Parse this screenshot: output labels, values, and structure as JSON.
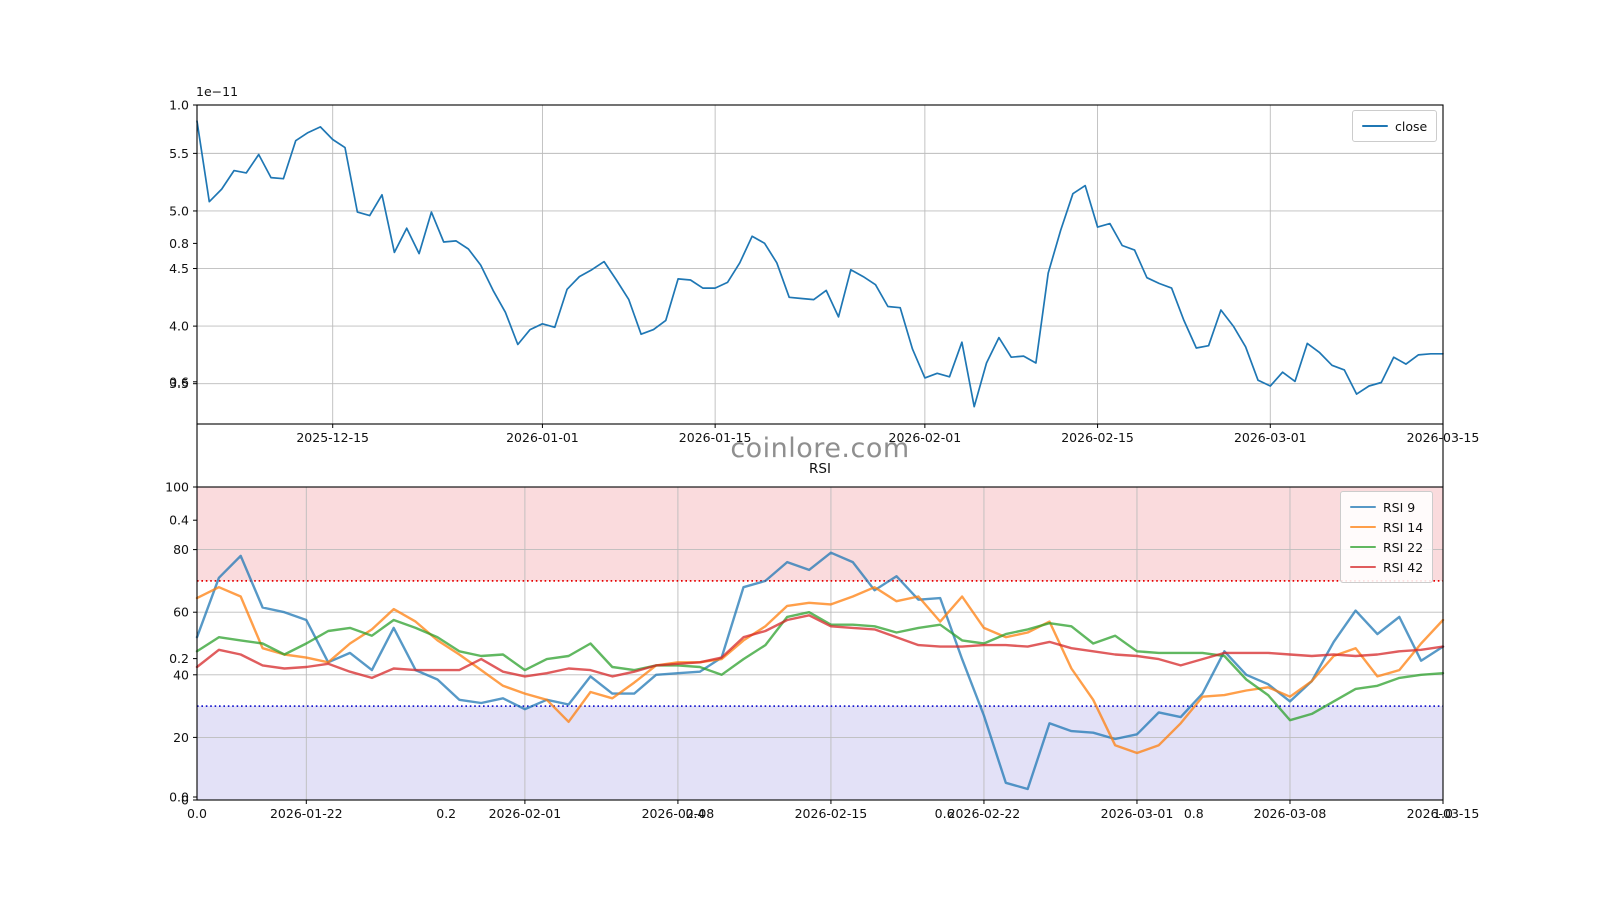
{
  "watermark": "coinlore.com",
  "colors": {
    "background": "#ffffff",
    "spine": "#000000",
    "grid": "#bcbcbc",
    "watermark": "#8f8f8f",
    "close_line": "#1f77b4",
    "rsi9_line": "rgba(31,119,180,0.75)",
    "rsi14_line": "rgba(255,127,14,0.75)",
    "rsi22_line": "rgba(44,160,44,0.75)",
    "rsi42_line": "rgba(214,39,40,0.75)",
    "overbought_band": "#fadbdd",
    "oversold_band": "#e3e1f7",
    "overbought_line": "#e60000",
    "oversold_line": "#1a1acd"
  },
  "overlay_axis": {
    "x_ticks": [
      "0.0",
      "0.2",
      "0.4",
      "0.6",
      "0.8",
      "1.0"
    ],
    "y_ticks": [
      "0.0",
      "0.2",
      "0.4",
      "0.6",
      "0.8",
      "1.0"
    ]
  },
  "chart_data": [
    {
      "type": "line",
      "name": "price",
      "y_offset_label": "1e−11",
      "unit_multiplier": "1e-11",
      "x_range": [
        "2025-12-04",
        "2026-03-15"
      ],
      "x_ticks": [
        "2025-12-15",
        "2026-01-01",
        "2026-01-15",
        "2026-02-01",
        "2026-02-15",
        "2026-03-01",
        "2026-03-15"
      ],
      "y_ticks": [
        "3.5",
        "4.0",
        "4.5",
        "5.0",
        "5.5"
      ],
      "ylim": [
        3.15,
        5.92
      ],
      "grid": true,
      "legend_position": "upper right",
      "series": [
        {
          "name": "close",
          "color": "#1f77b4",
          "values": [
            5.78,
            5.08,
            5.19,
            5.35,
            5.33,
            5.49,
            5.29,
            5.28,
            5.61,
            5.68,
            5.73,
            5.62,
            5.55,
            4.99,
            4.96,
            5.14,
            4.64,
            4.85,
            4.63,
            4.99,
            4.73,
            4.74,
            4.67,
            4.53,
            4.31,
            4.12,
            3.84,
            3.97,
            4.02,
            3.99,
            4.32,
            4.43,
            4.49,
            4.56,
            4.4,
            4.23,
            3.93,
            3.97,
            4.05,
            4.41,
            4.4,
            4.33,
            4.33,
            4.38,
            4.55,
            4.78,
            4.72,
            4.55,
            4.25,
            4.24,
            4.23,
            4.31,
            4.08,
            4.49,
            4.43,
            4.36,
            4.17,
            4.16,
            3.8,
            3.55,
            3.59,
            3.56,
            3.86,
            3.3,
            3.68,
            3.9,
            3.73,
            3.74,
            3.68,
            4.46,
            4.83,
            5.15,
            5.22,
            4.86,
            4.89,
            4.7,
            4.66,
            4.42,
            4.37,
            4.33,
            4.05,
            3.81,
            3.83,
            4.14,
            4.0,
            3.82,
            3.53,
            3.48,
            3.6,
            3.52,
            3.85,
            3.77,
            3.66,
            3.62,
            3.41,
            3.48,
            3.51,
            3.73,
            3.67,
            3.75,
            3.76,
            3.76
          ]
        }
      ]
    },
    {
      "type": "line",
      "name": "rsi",
      "title": "RSI",
      "x_range": [
        "2026-01-17",
        "2026-03-15"
      ],
      "x_ticks": [
        "2026-01-22",
        "2026-02-01",
        "2026-02-08",
        "2026-02-15",
        "2026-02-22",
        "2026-03-01",
        "2026-03-08",
        "2026-03-15"
      ],
      "y_ticks": [
        "0",
        "20",
        "40",
        "60",
        "80",
        "100"
      ],
      "ylim": [
        0,
        100
      ],
      "grid": true,
      "overbought_level": 70,
      "oversold_level": 30,
      "legend_position": "upper right",
      "series": [
        {
          "name": "RSI 9",
          "color": "rgba(31,119,180,0.75)",
          "values": [
            52,
            71,
            78,
            61.5,
            60,
            57.5,
            44,
            47,
            41.5,
            55,
            41.5,
            38.5,
            32,
            31,
            32.5,
            29,
            32,
            30.5,
            39.5,
            34,
            34,
            40,
            40.5,
            41,
            45.5,
            68,
            70,
            76,
            73.5,
            79,
            76,
            67,
            71.5,
            64,
            64.5,
            45,
            27,
            5.5,
            3.5,
            24.5,
            22,
            21.5,
            19.5,
            21,
            28,
            26.5,
            34,
            47.5,
            40,
            37,
            31.5,
            38,
            50.5,
            60.5,
            53,
            58.5,
            44.5,
            49
          ]
        },
        {
          "name": "RSI 14",
          "color": "rgba(255,127,14,0.75)",
          "values": [
            64.5,
            68,
            65,
            48.5,
            46.5,
            45.5,
            44,
            50,
            54.5,
            61,
            57,
            51,
            46.5,
            41.5,
            36.5,
            34,
            32,
            25,
            34.5,
            32.5,
            37.5,
            43,
            44,
            44,
            45,
            51,
            55.5,
            62,
            63,
            62.5,
            65,
            68,
            63.5,
            65,
            57,
            65,
            55,
            52,
            53.5,
            57,
            42,
            32,
            17.5,
            15,
            17.5,
            24.5,
            33,
            33.5,
            35,
            36,
            33,
            38,
            46,
            48.5,
            39.5,
            41.5,
            50,
            57.5
          ]
        },
        {
          "name": "RSI 22",
          "color": "rgba(44,160,44,0.75)",
          "values": [
            47.5,
            52,
            51,
            50,
            46.5,
            50,
            54,
            55,
            52.5,
            57.5,
            55,
            52,
            47.5,
            46,
            46.5,
            41.5,
            45,
            46,
            50,
            42.5,
            41.5,
            43,
            43,
            42.5,
            40,
            45,
            49.5,
            58.5,
            60,
            56,
            56,
            55.5,
            53.5,
            55,
            56,
            51,
            50,
            53,
            54.5,
            56.5,
            55.5,
            50,
            52.5,
            47.5,
            47,
            47,
            47,
            46,
            38.5,
            33.5,
            25.5,
            27.5,
            31.5,
            35.5,
            36.5,
            39,
            40,
            40.5
          ]
        },
        {
          "name": "RSI 42",
          "color": "rgba(214,39,40,0.75)",
          "values": [
            42.5,
            48,
            46.5,
            43,
            42,
            42.5,
            43.5,
            41,
            39,
            42,
            41.5,
            41.5,
            41.5,
            45,
            41,
            39.5,
            40.5,
            42,
            41.5,
            39.5,
            41,
            43,
            43.5,
            44,
            45.5,
            52,
            54,
            57.5,
            59,
            55.5,
            55,
            54.5,
            52,
            49.5,
            49,
            49,
            49.5,
            49.5,
            49,
            50.5,
            48.5,
            47.5,
            46.5,
            46,
            45,
            43,
            45,
            47,
            47,
            47,
            46.5,
            46,
            46.5,
            46,
            46.5,
            47.5,
            48,
            49
          ]
        }
      ]
    }
  ]
}
